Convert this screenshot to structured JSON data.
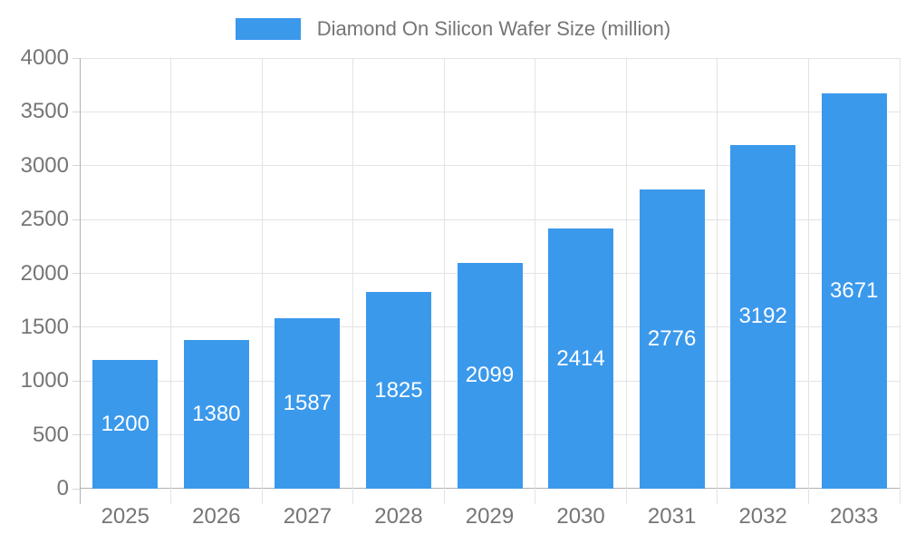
{
  "legend": {
    "label": "Diamond On Silicon Wafer Size (million)"
  },
  "chart_data": {
    "type": "bar",
    "title": "Diamond On Silicon Wafer Size (million)",
    "categories": [
      "2025",
      "2026",
      "2027",
      "2028",
      "2029",
      "2030",
      "2031",
      "2032",
      "2033"
    ],
    "values": [
      1200,
      1380,
      1587,
      1825,
      2099,
      2414,
      2776,
      3192,
      3671
    ],
    "xlabel": "",
    "ylabel": "",
    "ylim": [
      0,
      4000
    ],
    "yticks": [
      0,
      500,
      1000,
      1500,
      2000,
      2500,
      3000,
      3500,
      4000
    ],
    "grid": true,
    "legend_position": "top-center",
    "bar_value_labels": "centered-inside-white",
    "colors": {
      "bar": "#3b99ec",
      "bar_label": "#ffffff",
      "axis_text": "#757575",
      "grid_line": "#e3e3e3",
      "axis_line": "#b0b0b0",
      "tick_line": "#d6d6d6",
      "background": "#ffffff"
    }
  }
}
